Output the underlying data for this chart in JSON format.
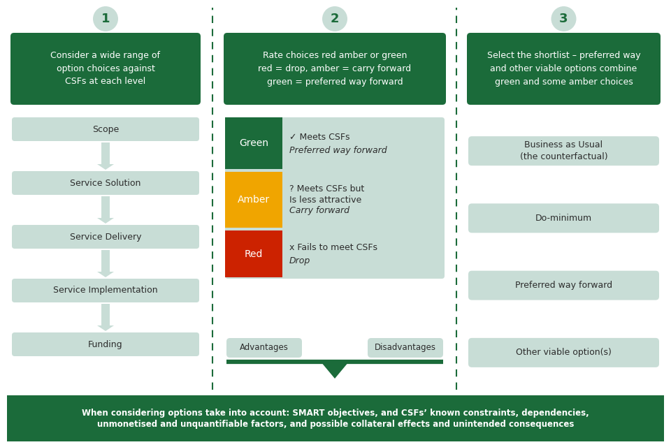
{
  "bg_color": "#ffffff",
  "dark_green": "#1b6b3a",
  "light_teal_box": "#c8ddd6",
  "light_teal_panel": "#c8ddd6",
  "amber_color": "#f0a500",
  "red_color": "#cc2200",
  "circle_bg": "#c8ddd6",
  "footer_bg": "#1b6b3a",
  "dashed_line_color": "#1b6b3a",
  "text_dark": "#2c2c2c",
  "text_white": "#ffffff",
  "col1_header": "Consider a wide range of\noption choices against\nCSFs at each level",
  "col2_header": "Rate choices red amber or green\nred = drop, amber = carry forward\ngreen = preferred way forward",
  "col3_header": "Select the shortlist – preferred way\nand other viable options combine\ngreen and some amber choices",
  "col1_items": [
    "Scope",
    "Service Solution",
    "Service Delivery",
    "Service Implementation",
    "Funding"
  ],
  "col3_items": [
    "Business as Usual\n(the counterfactual)",
    "Do-minimum",
    "Preferred way forward",
    "Other viable option(s)"
  ],
  "green_label": "Green",
  "green_text1": "✓ Meets CSFs",
  "green_text2": "Preferred way forward",
  "amber_label": "Amber",
  "amber_text1": "? Meets CSFs but",
  "amber_text2": "Is less attractive",
  "amber_text3": "Carry forward",
  "red_label": "Red",
  "red_text1": "x Fails to meet CSFs",
  "red_text2": "Drop",
  "adv_label": "Advantages",
  "disadv_label": "Disadvantages",
  "footer_line1": "When considering options take into account: SMART objectives, and CSFs’ known constraints, dependencies,",
  "footer_line2": "unmonetised and unquantifiable factors, and possible collateral effects and unintended consequences",
  "circle_labels": [
    "1",
    "2",
    "3"
  ]
}
